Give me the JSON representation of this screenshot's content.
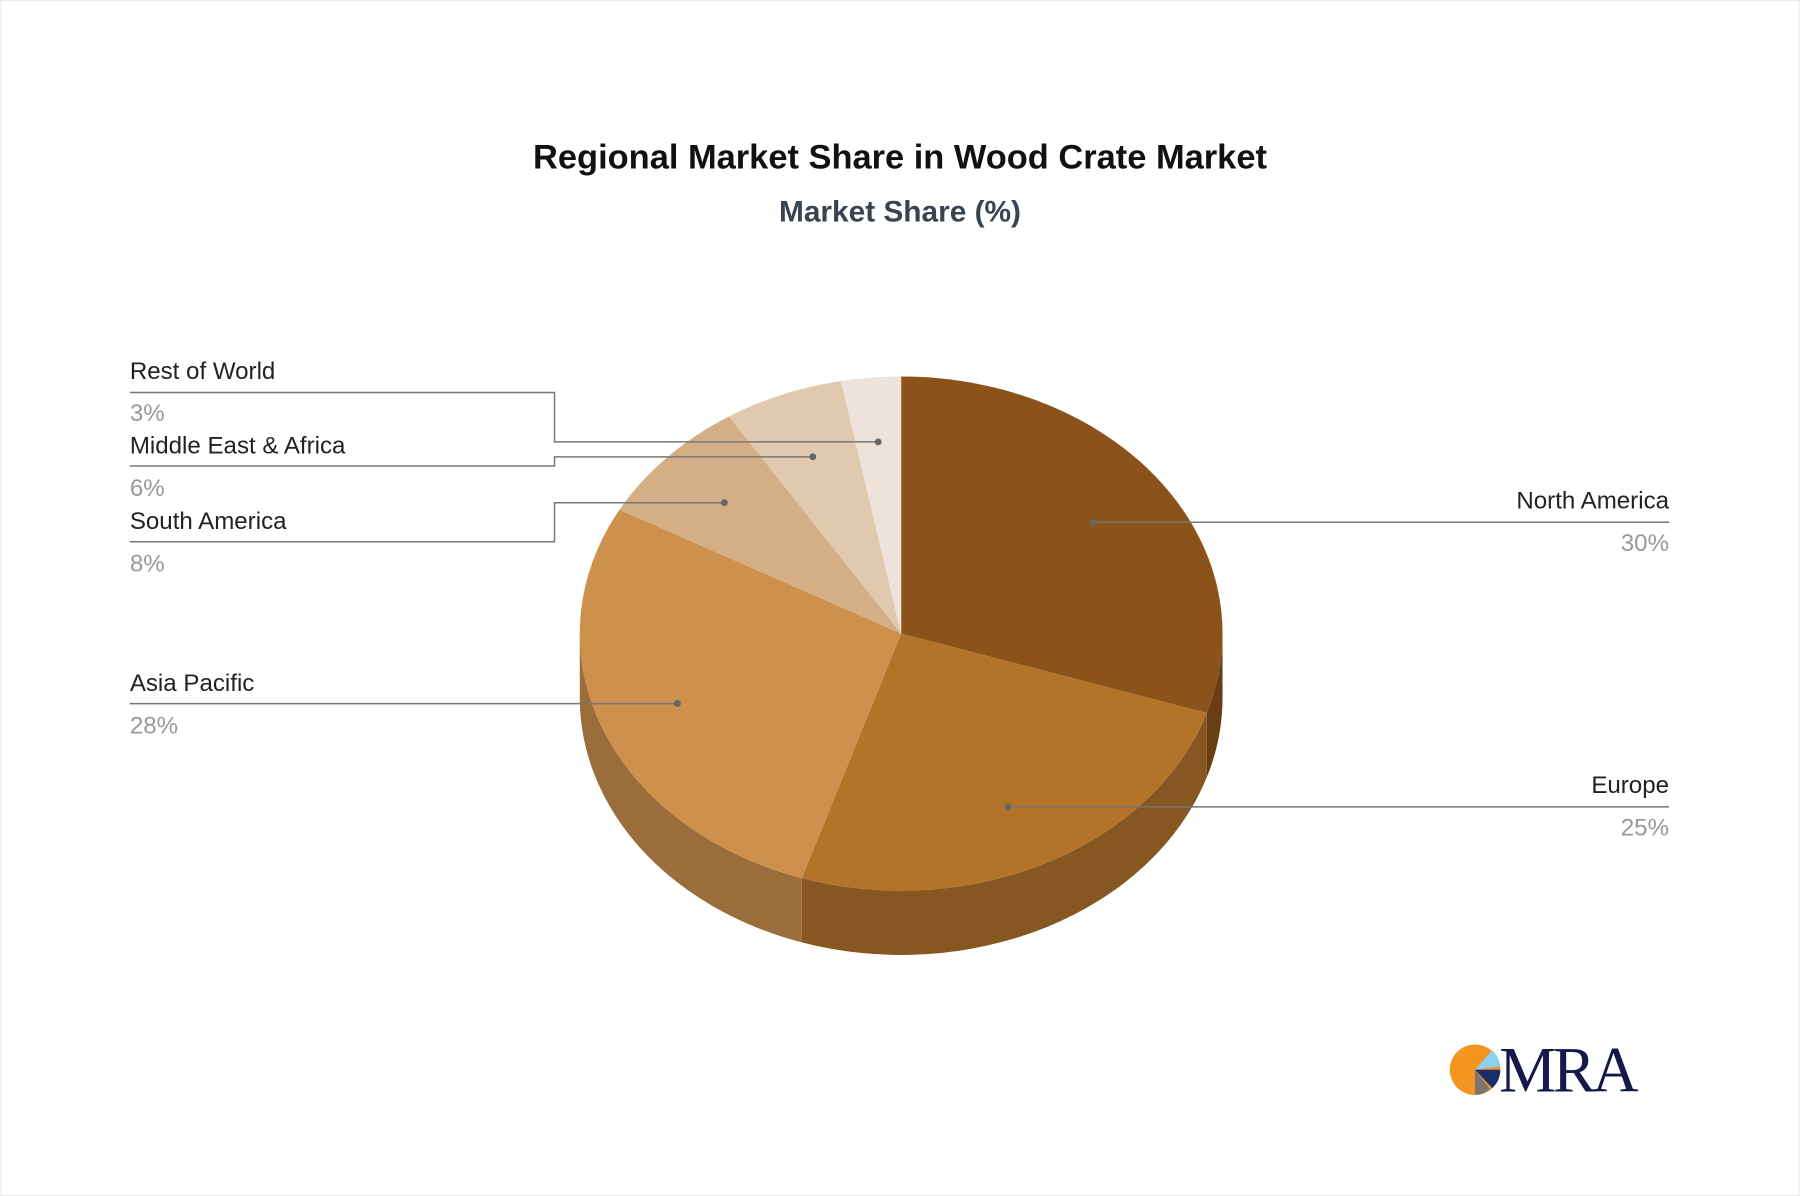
{
  "chart_data": {
    "type": "pie",
    "style": "3d",
    "title": "Regional Market Share in Wood Crate Market",
    "subtitle": "Market Share (%)",
    "slices": [
      {
        "label": "North America",
        "value": 30,
        "display": "30%",
        "color": "#8B5319"
      },
      {
        "label": "Europe",
        "value": 25,
        "display": "25%",
        "color": "#B3742A"
      },
      {
        "label": "Asia Pacific",
        "value": 28,
        "display": "28%",
        "color": "#CD914D"
      },
      {
        "label": "South America",
        "value": 8,
        "display": "8%",
        "color": "#D4AE84"
      },
      {
        "label": "Middle East & Africa",
        "value": 6,
        "display": "6%",
        "color": "#E0C9AF"
      },
      {
        "label": "Rest of World",
        "value": 3,
        "display": "3%",
        "color": "#EDE3DA"
      }
    ],
    "start": "top",
    "direction": "clockwise",
    "legend": "none"
  },
  "logo": {
    "text": "MRA",
    "colors": [
      "#F4951F",
      "#8FD0F0",
      "#1B2C6B",
      "#7A756E"
    ]
  }
}
